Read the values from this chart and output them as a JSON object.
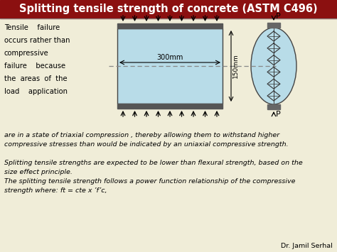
{
  "title": "Splitting tensile strength of concrete (ASTM C496)",
  "title_color": "#8B1010",
  "bg_color": "#F0EDD8",
  "left_text_lines": [
    "Tensile    failure",
    "occurs rather than",
    "compressive",
    "failure    because",
    "the  areas  of  the",
    "load    application"
  ],
  "body_text1": "are in a state of triaxial compression , thereby allowing them to withstand higher",
  "body_text2": "compressive stresses than would be indicated by an uniaxial compressive strength.",
  "body_text3": "Splitting tensile strengths are expected to be lower than flexural strength, based on the",
  "body_text4": "size effect principle.",
  "body_text5": "The splitting tensile strength follows a power function relationship of the compressive",
  "body_text6": "strength where: ft = cte x ’f’c,",
  "footer": "Dr. Jamil Serhal",
  "rect_color": "#B8DCE8",
  "rect_label_300": "300mm",
  "rect_label_150": "150mm"
}
